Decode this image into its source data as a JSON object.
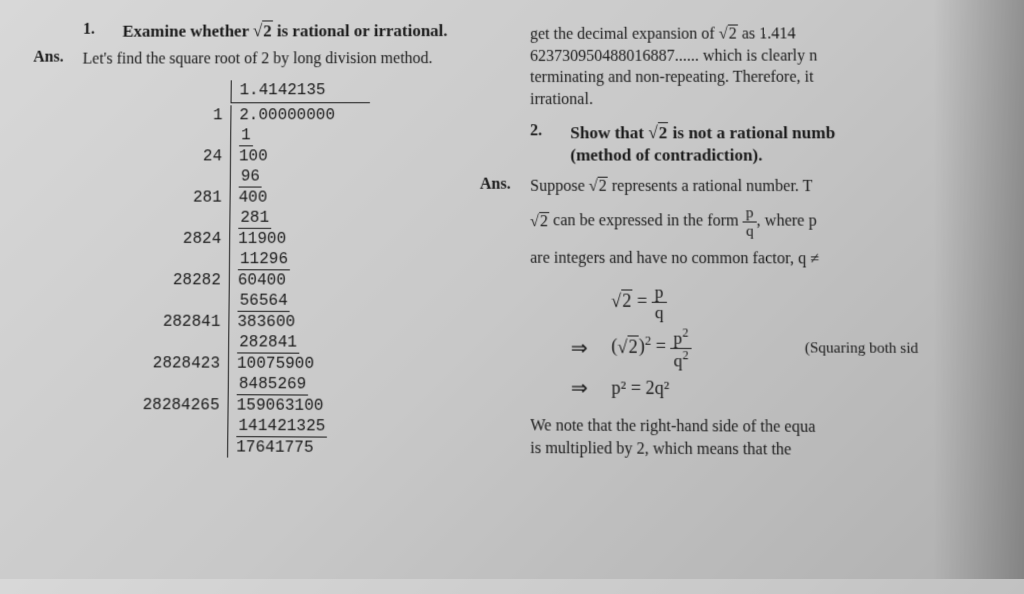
{
  "q1": {
    "num": "1.",
    "text_pre": "Examine whether ",
    "sqrt_val": "2",
    "text_post": " is rational or irrational."
  },
  "ans1": {
    "label": "Ans.",
    "text": "Let's find the square root of 2 by long division method."
  },
  "longdiv": {
    "quotient": "1.4142135",
    "rows": [
      {
        "left": "1",
        "right": "2.00000000"
      },
      {
        "left": "",
        "sub": "1"
      },
      {
        "left": "24",
        "right": "100"
      },
      {
        "left": "",
        "sub": "96"
      },
      {
        "left": "281",
        "right": "400"
      },
      {
        "left": "",
        "sub": "281"
      },
      {
        "left": "2824",
        "right": "11900"
      },
      {
        "left": "",
        "sub": "11296"
      },
      {
        "left": "28282",
        "right": "60400"
      },
      {
        "left": "",
        "sub": "56564"
      },
      {
        "left": "282841",
        "right": "383600"
      },
      {
        "left": "",
        "sub": "282841"
      },
      {
        "left": "2828423",
        "right": "10075900"
      },
      {
        "left": "",
        "sub": "8485269"
      },
      {
        "left": "28284265",
        "right": "159063100"
      },
      {
        "left": "",
        "sub": "141421325"
      },
      {
        "left": "",
        "right": "17641775"
      }
    ]
  },
  "right_top": {
    "line1_pre": "get the decimal expansion of ",
    "line1_sqrt": "2",
    "line1_post": " as 1.414",
    "line2": "623730950488016887...... which is clearly n",
    "line3": "terminating and non-repeating. Therefore, it",
    "line4": "irrational."
  },
  "q2": {
    "num": "2.",
    "text_pre": "Show that ",
    "sqrt_val": "2",
    "text_mid": " is not a rational numb",
    "text2": "(method of contradiction)."
  },
  "ans2": {
    "label": "Ans.",
    "l1_pre": "Suppose ",
    "l1_sqrt": "2",
    "l1_post": " represents a rational number. T",
    "l2_sqrt": "2",
    "l2_mid": " can be expressed in the form ",
    "l2_frac_n": "p",
    "l2_frac_d": "q",
    "l2_post": ", where p",
    "l3": "are integers and have no common factor, q ≠"
  },
  "eqns": {
    "e1_lhs_sqrt": "2",
    "e1_eq": " = ",
    "e1_frac_n": "p",
    "e1_frac_d": "q",
    "arrow": "⇒",
    "e2_lhs_sqrt": "2",
    "e2_eq": " = ",
    "e2_frac_n": "p",
    "e2_frac_d": "q",
    "e2_note": "(Squaring both sid",
    "e3": "p² = 2q²"
  },
  "bottom": {
    "l1": "We note that the right-hand side of the equa",
    "l2": "is multiplied by 2, which means that the"
  }
}
